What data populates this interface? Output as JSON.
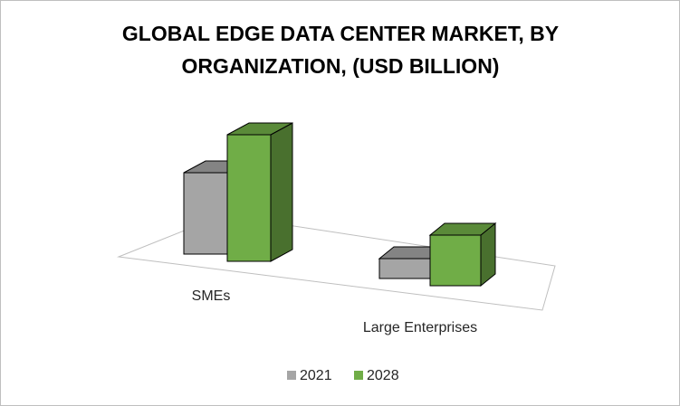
{
  "chart_data": {
    "type": "bar3d",
    "title": "GLOBAL EDGE DATA CENTER MARKET, BY ORGANIZATION, (USD BILLION)",
    "categories": [
      "SMEs",
      "Large Enterprises"
    ],
    "series": [
      {
        "name": "2021",
        "color": "#a5a5a5",
        "values": [
          4.5,
          1.1
        ]
      },
      {
        "name": "2028",
        "color": "#70ad47",
        "values": [
          7.0,
          2.8
        ]
      }
    ],
    "ylim": [
      0,
      10
    ],
    "legend": "bottom"
  }
}
